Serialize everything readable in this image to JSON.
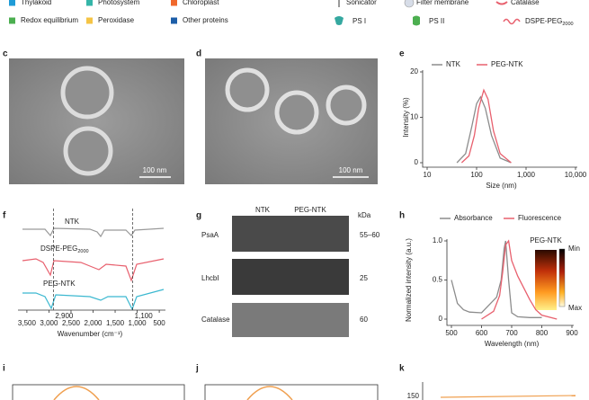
{
  "legend": {
    "left": [
      {
        "label": "Thylakoid",
        "color": "#1e9bd7"
      },
      {
        "label": "Photosystem",
        "color": "#35b5a8"
      },
      {
        "label": "Chloroplast",
        "color": "#f0682c"
      },
      {
        "label": "Redox equilibrium",
        "color": "#4caf50"
      },
      {
        "label": "Peroxidase",
        "color": "#f5c445"
      },
      {
        "label": "Other proteins",
        "color": "#1d5ea8"
      }
    ],
    "right": [
      {
        "label": "Sonicator"
      },
      {
        "label": "Filter membrane"
      },
      {
        "label": "Catalase"
      },
      {
        "label": "PS I"
      },
      {
        "label": "PS II"
      },
      {
        "label": "DSPE-PEG",
        "sub": "2000"
      }
    ]
  },
  "panels": {
    "c": {
      "label": "c",
      "scale_bar": "100 nm"
    },
    "d": {
      "label": "d",
      "scale_bar": "100 nm"
    },
    "e": {
      "label": "e",
      "chart_data": {
        "type": "line",
        "xlabel": "Size (nm)",
        "ylabel": "Intensity (%)",
        "xscale": "log",
        "xlim": [
          10,
          10000
        ],
        "xticks": [
          10,
          100,
          {
            "value": 1000,
            "label": "1,000"
          },
          {
            "value": 10000,
            "label": "10,000"
          }
        ],
        "ylim": [
          0,
          20
        ],
        "yticks": [
          0,
          10,
          20
        ],
        "series": [
          {
            "name": "NTK",
            "color": "#8c8c8c",
            "x": [
              40,
              60,
              80,
              100,
              120,
              150,
              200,
              300,
              500
            ],
            "values": [
              0,
              2,
              8,
              13,
              14.5,
              12,
              6,
              1,
              0
            ]
          },
          {
            "name": "PEG-NTK",
            "color": "#e8606e",
            "x": [
              50,
              70,
              90,
              110,
              140,
              170,
              220,
              300,
              500
            ],
            "values": [
              0,
              1.5,
              6,
              12,
              16,
              14,
              7,
              2,
              0
            ]
          }
        ]
      }
    },
    "f": {
      "label": "f",
      "traces": [
        {
          "label": "NTK"
        },
        {
          "label": "DSPE-PEG",
          "sub": "2000"
        },
        {
          "label": "PEG-NTK"
        }
      ],
      "xlabel": "Wavenumber (cm⁻¹)",
      "xlim": [
        3600,
        400
      ],
      "xticks": [
        {
          "value": 3500,
          "label": "3,500"
        },
        {
          "value": 3000,
          "label": "3,000"
        },
        {
          "value": 2500,
          "label": "2,500"
        },
        {
          "value": 2000,
          "label": "2,000"
        },
        {
          "value": 1500,
          "label": "1,500"
        },
        {
          "value": 1000,
          "label": "1,000"
        },
        500
      ],
      "annotations": [
        {
          "value": 2900,
          "label": "2,900"
        },
        {
          "value": 1100,
          "label": "1,100"
        }
      ]
    },
    "g": {
      "label": "g",
      "columns": [
        "NTK",
        "PEG-NTK"
      ],
      "unit": "kDa",
      "rows": [
        {
          "name": "PsaA",
          "kda": "55–60"
        },
        {
          "name": "LhcbI",
          "kda": "25"
        },
        {
          "name": "Catalase",
          "kda": "60"
        }
      ]
    },
    "h": {
      "label": "h",
      "inset_label": "PEG-NTK",
      "colorbar": [
        "Min",
        "Max"
      ],
      "chart_data": {
        "type": "line",
        "xlabel": "Wavelength (nm)",
        "ylabel": "Normalized intensity (a.u.)",
        "xlim": [
          500,
          900
        ],
        "xticks": [
          500,
          600,
          700,
          800,
          900
        ],
        "ylim": [
          0,
          1
        ],
        "yticks": [
          0,
          0.5,
          {
            "value": 1,
            "label": "1.0"
          }
        ],
        "series": [
          {
            "name": "Absorbance",
            "color": "#8c8c8c",
            "x": [
              500,
              520,
              540,
              560,
              600,
              630,
              650,
              665,
              675,
              680,
              690,
              700,
              720,
              760,
              800
            ],
            "values": [
              0.5,
              0.2,
              0.12,
              0.09,
              0.08,
              0.2,
              0.28,
              0.5,
              0.9,
              1,
              0.5,
              0.08,
              0.03,
              0.02,
              0.02
            ]
          },
          {
            "name": "Fluorescence",
            "color": "#e8606e",
            "x": [
              600,
              640,
              660,
              670,
              680,
              690,
              700,
              720,
              740,
              760,
              780,
              800,
              850
            ],
            "values": [
              0,
              0.1,
              0.3,
              0.6,
              0.95,
              1,
              0.75,
              0.55,
              0.4,
              0.25,
              0.12,
              0.05,
              0
            ]
          }
        ]
      }
    },
    "i": {
      "label": "i"
    },
    "j": {
      "label": "j"
    },
    "k": {
      "label": "k",
      "ytick": "150"
    }
  }
}
